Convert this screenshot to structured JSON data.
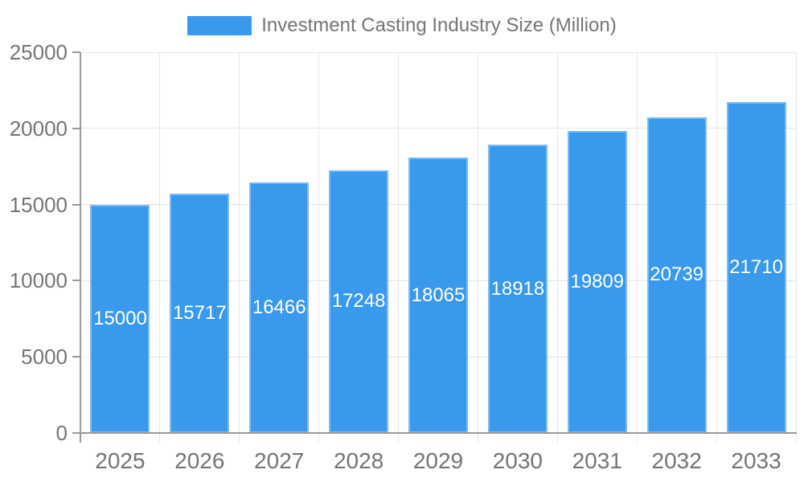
{
  "chart_data": {
    "type": "bar",
    "title": "",
    "xlabel": "",
    "ylabel": "",
    "categories": [
      "2025",
      "2026",
      "2027",
      "2028",
      "2029",
      "2030",
      "2031",
      "2032",
      "2033"
    ],
    "series": [
      {
        "name": "Investment Casting Industry Size (Million)",
        "values": [
          15000,
          15717,
          16466,
          17248,
          18065,
          18918,
          19809,
          20739,
          21710
        ],
        "color": "#3999ED"
      }
    ],
    "ylim": [
      0,
      25000
    ],
    "y_ticks": [
      0,
      5000,
      10000,
      15000,
      20000,
      25000
    ],
    "grid": "horizontal-and-vertical",
    "legend_position": "top",
    "bar_labels_visible": true,
    "bar_label_color": "#FFFFFF",
    "colors": {
      "bar": "#3999ED",
      "gridline": "#E6E6E6",
      "axis_line": "#999999",
      "tick_text": "#757575",
      "legend_text": "#757575",
      "background": "#FFFFFF"
    }
  }
}
